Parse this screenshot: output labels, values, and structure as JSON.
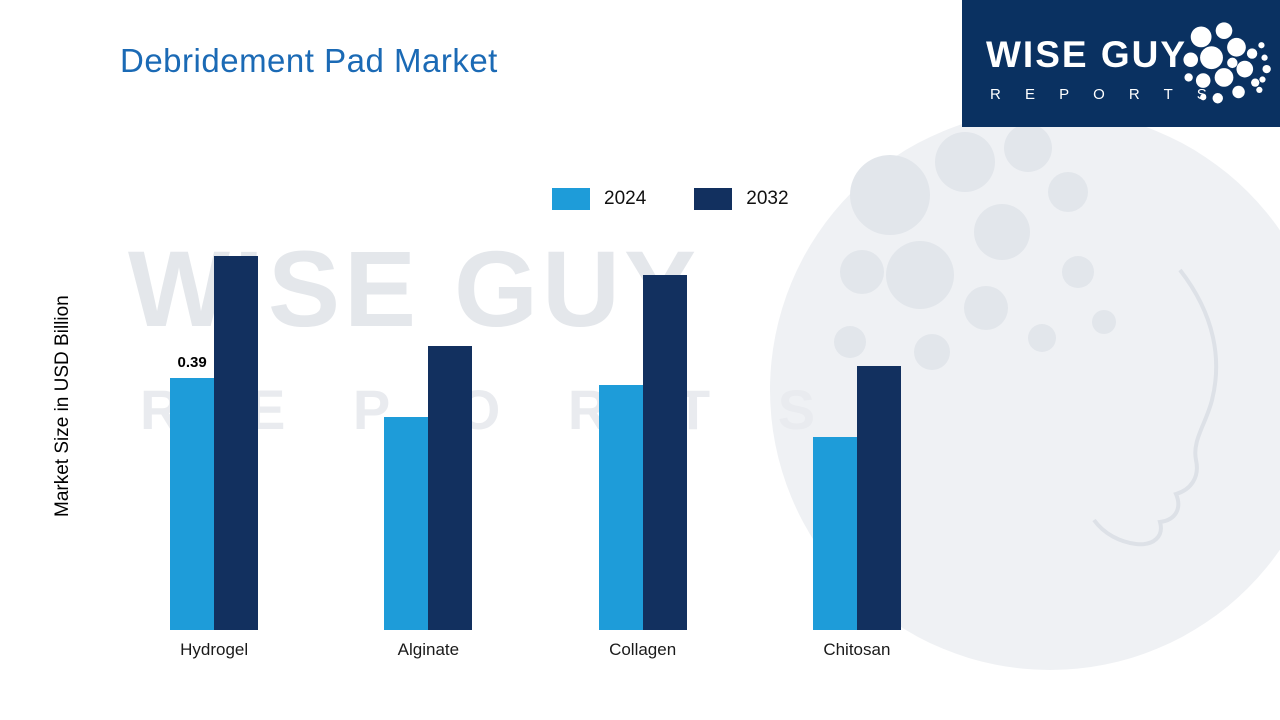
{
  "header": {
    "title": "Debridement Pad Market"
  },
  "logo": {
    "line1": "WISE GUY",
    "line2": "R E P O R T S"
  },
  "watermark": {
    "line1": "WISE GUY",
    "line2": "R E P O R T S"
  },
  "colors": {
    "title_blue": "#1b6ab5",
    "series_2024": "#1e9cd9",
    "series_2032": "#12305f",
    "logo_background": "#0a3161",
    "watermark_gray": "#e4e7eb"
  },
  "chart_data": {
    "type": "bar",
    "title": "Debridement Pad Market",
    "xlabel": "",
    "ylabel": "Market Size in USD Billion",
    "categories": [
      "Hydrogel",
      "Alginate",
      "Collagen",
      "Chitosan"
    ],
    "series": [
      {
        "name": "2024",
        "color": "#1e9cd9",
        "values": [
          0.39,
          0.33,
          0.38,
          0.3
        ]
      },
      {
        "name": "2032",
        "color": "#12305f",
        "values": [
          0.58,
          0.44,
          0.55,
          0.41
        ]
      }
    ],
    "annotations": [
      {
        "category_index": 0,
        "series_index": 0,
        "text": "0.39"
      }
    ],
    "ylim": [
      0,
      0.62
    ],
    "grid": false,
    "legend_position": "top"
  }
}
